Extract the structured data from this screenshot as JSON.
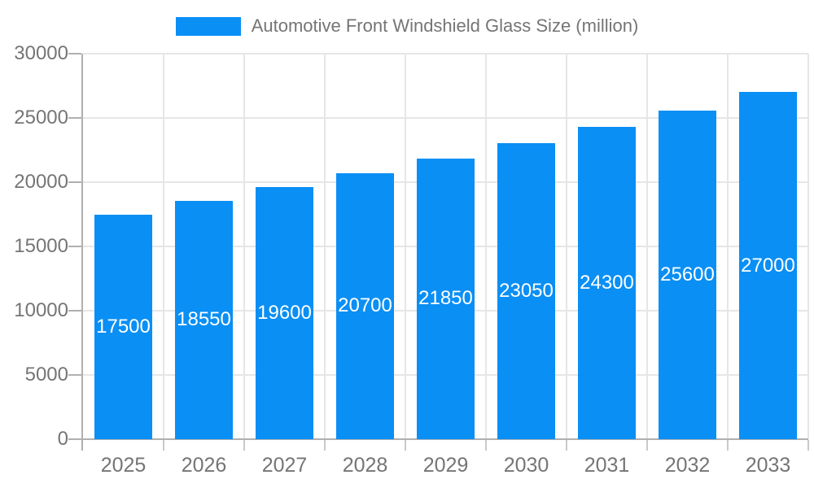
{
  "legend": {
    "label": "Automotive Front Windshield Glass Size (million)",
    "swatch_color": "#0a8ff5"
  },
  "chart_data": {
    "type": "bar",
    "title": "Automotive Front Windshield Glass Size (million)",
    "categories": [
      "2025",
      "2026",
      "2027",
      "2028",
      "2029",
      "2030",
      "2031",
      "2032",
      "2033"
    ],
    "values": [
      17500,
      18550,
      19600,
      20700,
      21850,
      23050,
      24300,
      25600,
      27000
    ],
    "xlabel": "",
    "ylabel": "",
    "ylim": [
      0,
      30000
    ],
    "yticks": [
      0,
      5000,
      10000,
      15000,
      20000,
      25000,
      30000
    ],
    "grid": true,
    "legend_position": "top",
    "value_labels": "inside-center",
    "colors": {
      "bar": "#0a8ff5",
      "value_label": "#ffffff",
      "axis_text": "#757575",
      "axis_line": "#b0b0b0",
      "x_tick": "#c9c9c9",
      "grid": "#e6e6e6",
      "background": "#ffffff"
    }
  }
}
